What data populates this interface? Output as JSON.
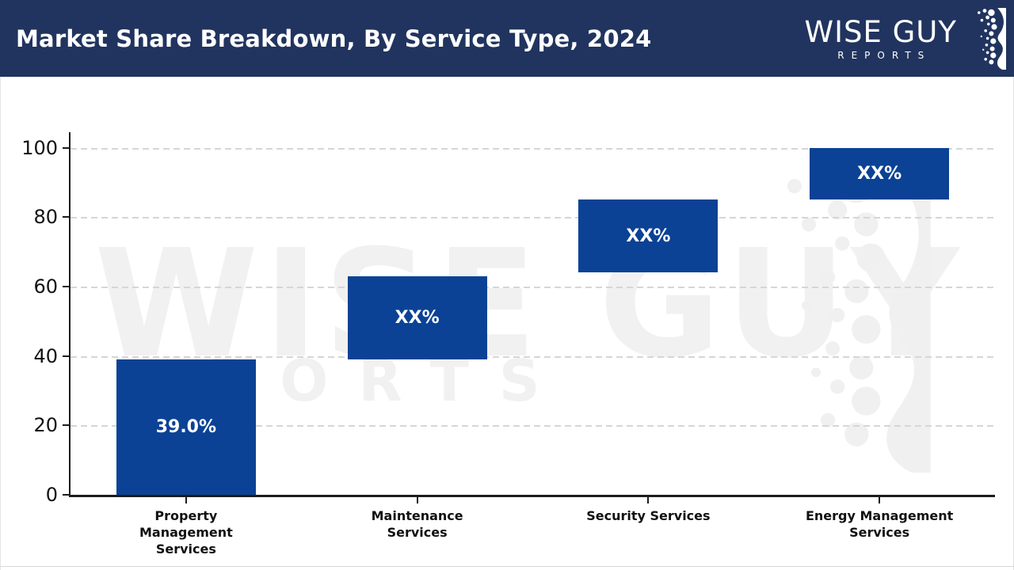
{
  "header": {
    "title": "Market Share Breakdown, By Service Type, 2024"
  },
  "logo": {
    "wordmark": "WISE GUY",
    "sub": "REPORTS"
  },
  "watermark": {
    "wordmark": "WISE GUY",
    "sub": "PORTS"
  },
  "chart_data": {
    "type": "bar",
    "variant": "floating-waterfall",
    "title": "Market Share Breakdown, By Service Type, 2024",
    "categories": [
      "Property Management Services",
      "Maintenance Services",
      "Security Services",
      "Energy Management Services"
    ],
    "x_tick_labels": [
      [
        "Property",
        "Management",
        "Services"
      ],
      [
        "Maintenance",
        "Services"
      ],
      [
        "Security Services"
      ],
      [
        "Energy Management",
        "Services"
      ]
    ],
    "segments": [
      {
        "category": "Property Management Services",
        "start": 0,
        "end": 39,
        "label": "39.0%"
      },
      {
        "category": "Maintenance Services",
        "start": 39,
        "end": 63,
        "label": "XX%"
      },
      {
        "category": "Security Services",
        "start": 64,
        "end": 85,
        "label": "XX%"
      },
      {
        "category": "Energy Management Services",
        "start": 85,
        "end": 100,
        "label": "XX%"
      }
    ],
    "yticks": [
      0,
      20,
      40,
      60,
      80,
      100
    ],
    "ylim": [
      0,
      104
    ],
    "xlabel": "",
    "ylabel": "",
    "grid": "horizontal-dashed",
    "legend": "none",
    "bar_color": "#0b4295",
    "bar_label_color": "#ffffff",
    "axis_color": "#1c1c1c",
    "gridline_color": "#d6d6d6",
    "header_color": "#21345f",
    "watermark_color": "#f1f1f1"
  }
}
